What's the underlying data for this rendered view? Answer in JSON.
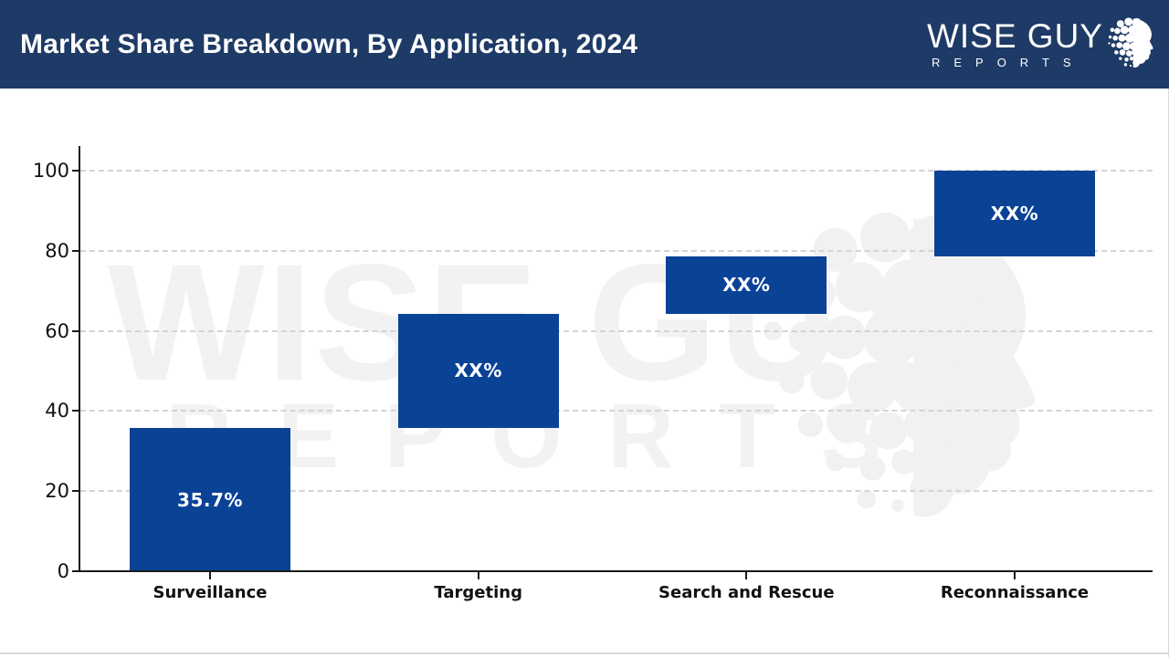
{
  "header": {
    "title": "Market Share Breakdown, By Application, 2024",
    "logo": {
      "line1": "WISE GUY",
      "line2": "REPORTS"
    }
  },
  "watermark": {
    "line1": "WISE GUY",
    "line2": "REPORTS"
  },
  "colors": {
    "header_bg": "#1e3a66",
    "bar": "#0a4296",
    "grid": "#d3d3d3",
    "axis": "#1a1a1a",
    "bar_label": "#ffffff",
    "watermark": "#f2f2f2"
  },
  "chart_data": {
    "type": "bar",
    "subtype": "waterfall-floating-bars",
    "title": "Market Share Breakdown, By Application, 2024",
    "categories": [
      "Surveillance",
      "Targeting",
      "Search and Rescue",
      "Reconnaissance"
    ],
    "segments": [
      {
        "category": "Surveillance",
        "start": 0,
        "end": 35.7,
        "label": "35.7%"
      },
      {
        "category": "Targeting",
        "start": 35.7,
        "end": 64.3,
        "label": "XX%"
      },
      {
        "category": "Search and Rescue",
        "start": 64.3,
        "end": 78.6,
        "label": "XX%"
      },
      {
        "category": "Reconnaissance",
        "start": 78.6,
        "end": 100,
        "label": "XX%"
      }
    ],
    "yticks": [
      0,
      20,
      40,
      60,
      80,
      100
    ],
    "ylim": [
      0,
      106
    ],
    "xlabel": "",
    "ylabel": "",
    "grid": "horizontal-dashed",
    "legend": "none"
  }
}
